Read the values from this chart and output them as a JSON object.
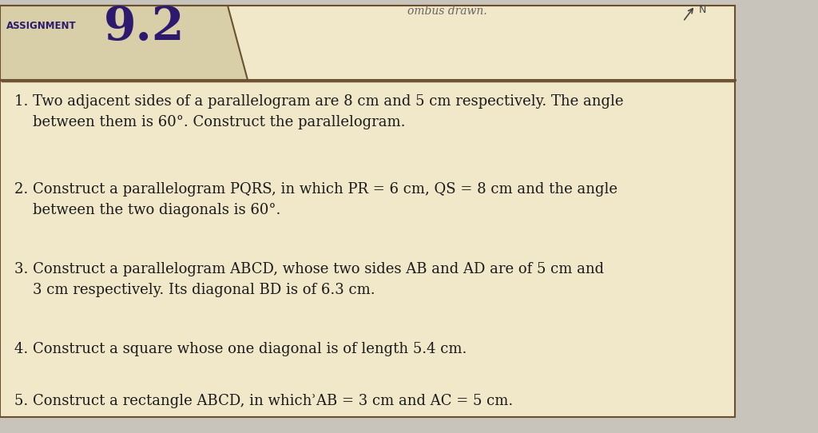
{
  "title_label": "ASSIGNMENT",
  "title_number": "9.2",
  "background_outer_color": "#c8c4bc",
  "card_color": "#f0e8c8",
  "tab_color": "#d8cfa8",
  "border_color": "#6b5030",
  "top_text": "ombus drawn.",
  "questions": [
    "1. Two adjacent sides of a parallelogram are 8 cm and 5 cm respectively. The angle\n    between them is 60°. Construct the parallelogram.",
    "2. Construct a parallelogram PQRS, in which PR = 6 cm, QS = 8 cm and the angle\n    between the two diagonals is 60°.",
    "3. Construct a parallelogram ABCD, whose two sides AB and AD are of 5 cm and\n    3 cm respectively. Its diagonal BD is of 6.3 cm.",
    "4. Construct a square whose one diagonal is of length 5.4 cm.",
    "5. Construct a rectangle ABCD, in whichʾAB = 3 cm and AC = 5 cm."
  ],
  "title_color": "#2d1a6e",
  "text_color": "#1a1a1a",
  "fig_width": 10.24,
  "fig_height": 5.42
}
